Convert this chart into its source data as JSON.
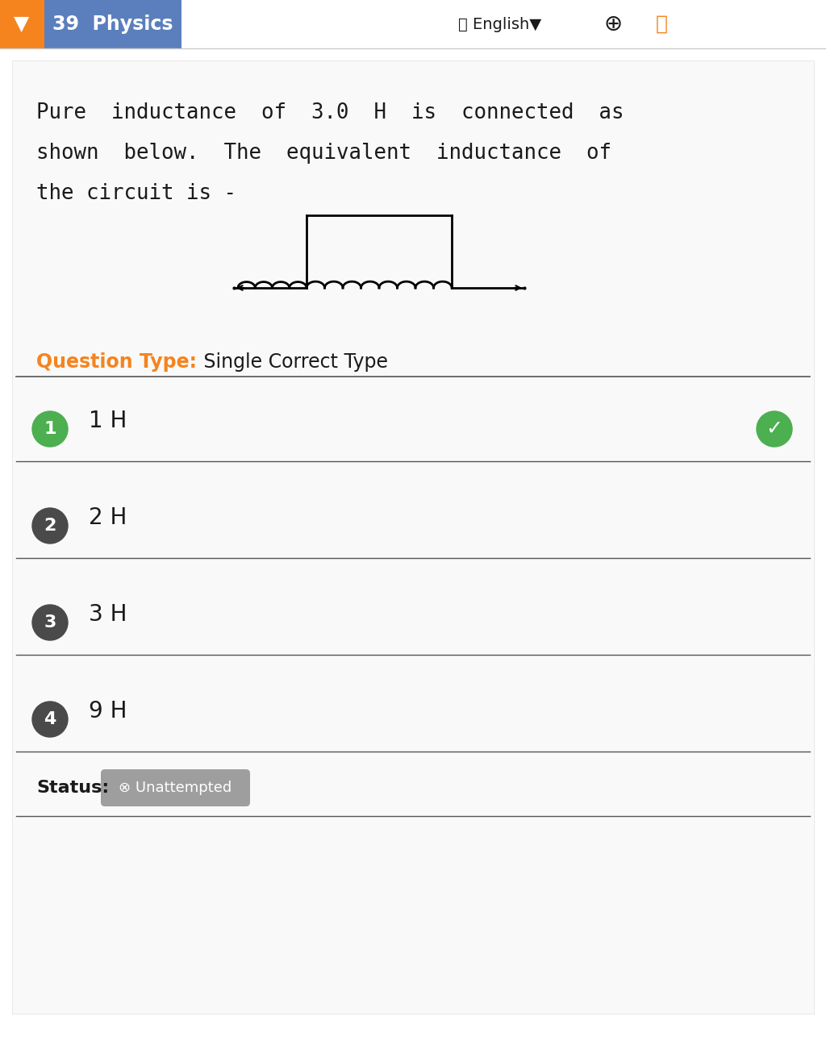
{
  "bg_color": "#ffffff",
  "header_bg": "#f5f5f5",
  "header_orange_bg": "#f5841f",
  "header_blue_bg": "#5b7fbc",
  "header_number": "39",
  "header_subject": "Physics",
  "question_text_line1": "Pure  inductance  of  3.0  H  is  connected  as",
  "question_text_line2": "shown  below.  The  equivalent  inductance  of",
  "question_text_line3": "the circuit is -",
  "question_type_label": "Question Type:",
  "question_type_value": " Single Correct Type",
  "options": [
    "1 H",
    "2 H",
    "3 H",
    "9 H"
  ],
  "correct_option": 0,
  "option_colors": [
    "#4caf50",
    "#4a4a4a",
    "#4a4a4a",
    "#4a4a4a"
  ],
  "correct_color": "#4caf50",
  "status_label": "Status:",
  "status_value": "Unattempted",
  "status_bg": "#9e9e9e",
  "orange_color": "#f5841f",
  "dark_color": "#4a4a4a",
  "text_color": "#1a1a1a"
}
